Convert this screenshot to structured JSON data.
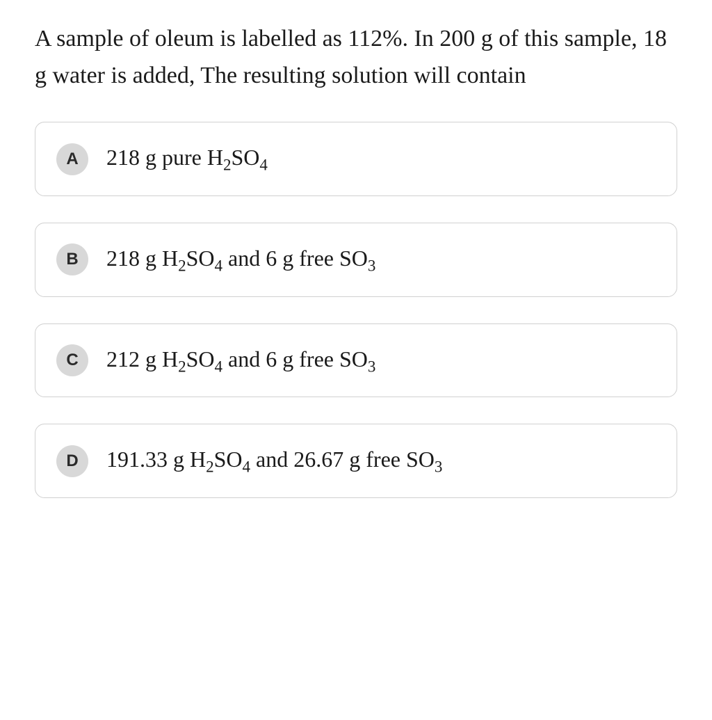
{
  "question": {
    "text": "A sample of oleum is labelled as 112%. In 200 g of this sample, 18 g water is added, The resulting solution will contain",
    "text_fontsize": 34,
    "text_color": "#1a1a1a",
    "background_color": "#ffffff"
  },
  "options": [
    {
      "letter": "A",
      "prefix": "218 g pure ",
      "formula": "H<sub>2</sub>SO<sub>4</sub>",
      "suffix": ""
    },
    {
      "letter": "B",
      "prefix": "218 g ",
      "formula": "H<sub>2</sub>SO<sub>4</sub>",
      "mid": " and 6 g free ",
      "formula2": "SO<sub>3</sub>",
      "suffix": ""
    },
    {
      "letter": "C",
      "prefix": "212 g ",
      "formula": "H<sub>2</sub>SO<sub>4</sub>",
      "mid": " and 6 g free ",
      "formula2": "SO<sub>3</sub>",
      "suffix": ""
    },
    {
      "letter": "D",
      "prefix": "191.33 g ",
      "formula": "H<sub>2</sub>SO<sub>4</sub>",
      "mid": " and 26.67 g free ",
      "formula2": "SO<sub>3</sub>",
      "suffix": ""
    }
  ],
  "styling": {
    "card_border_color": "#d0d0d0",
    "card_border_radius": 14,
    "card_background": "#ffffff",
    "badge_background": "#d8d8d8",
    "badge_text_color": "#2a2a2a",
    "badge_fontsize": 24,
    "option_text_fontsize": 32,
    "option_text_color": "#1a1a1a",
    "card_spacing": 38
  }
}
